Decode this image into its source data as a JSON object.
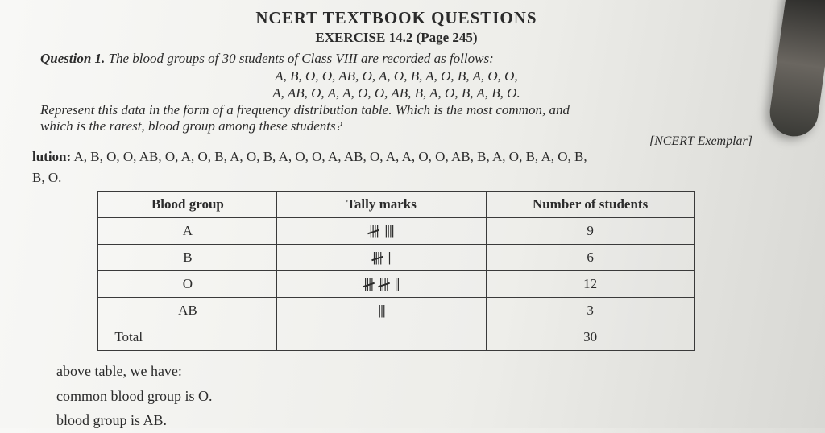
{
  "header": {
    "title": "NCERT TEXTBOOK QUESTIONS",
    "exercise": "EXERCISE 14.2 (Page 245)"
  },
  "question": {
    "prefix": "Question 1.",
    "text": "The blood groups of 30 students of Class VIII are recorded as follows:",
    "data_line1": "A, B, O, O, AB, O, A, O, B, A, O, B, A, O, O,",
    "data_line2": "A, AB, O, A, A, O, O, AB, B, A, O, B, A, B, O.",
    "explain1": "Represent this data in the form of a frequency distribution table. Which is the most common, and",
    "explain2": "which is the rarest, blood group among these students?",
    "source": "[NCERT Exemplar]"
  },
  "solution": {
    "label": "lution:",
    "list": "A, B, O, O, AB, O, A, O, B, A, O, B, A, O, O, A, AB, O, A, A, O, O, AB, B, A, O, B,",
    "list2": "B, O."
  },
  "table": {
    "headers": {
      "c1": "Blood group",
      "c2": "Tally marks",
      "c3": "Number of students"
    },
    "rows": [
      {
        "group": "A",
        "tally_fives": 1,
        "tally_ones": 4,
        "count": "9"
      },
      {
        "group": "B",
        "tally_fives": 1,
        "tally_ones": 1,
        "count": "6"
      },
      {
        "group": "O",
        "tally_fives": 2,
        "tally_ones": 2,
        "count": "12"
      },
      {
        "group": "AB",
        "tally_fives": 0,
        "tally_ones": 3,
        "count": "3"
      }
    ],
    "total_label": "Total",
    "total_value": "30"
  },
  "post": {
    "line1": "above table, we have:",
    "line2": "common blood group is O.",
    "line3": "blood group is AB."
  }
}
